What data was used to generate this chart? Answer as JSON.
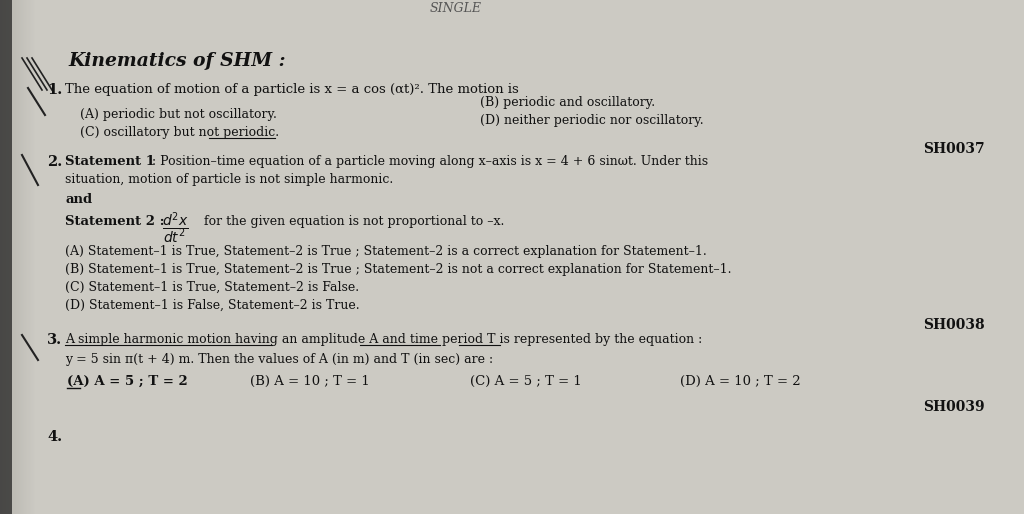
{
  "figsize": [
    10.24,
    5.14
  ],
  "dpi": 100,
  "bg_color": "#b8b8b8",
  "page_color": "#d8d5ce",
  "left_shadow": "#2a2a2a",
  "text_color": "#1a1a1a",
  "bold_color": "#111111",
  "sh_color": "#111111",
  "content": {
    "top_label": "SINGLE",
    "header": "Kinematics of SHM :",
    "q1_num": "1.",
    "q1_text": "The equation of motion of a particle is x = a cos (αt)². The motion is",
    "q1_A": "(A) periodic but not oscillatory.",
    "q1_B": "(B) periodic and oscillatory.",
    "q1_C": "(C) oscillatory but not periodic.",
    "q1_D": "(D) neither periodic nor oscillatory.",
    "sh0037": "SH0037",
    "q2_num": "2.",
    "q2_s1a": "Statement 1",
    "q2_s1b": " : Position–time equation of a particle moving along x–axis is x = 4 + 6 sinωt. Under this",
    "q2_s1c": "situation, motion of particle is not simple harmonic.",
    "q2_and": "and",
    "q2_s2a": "Statement 2 : ",
    "q2_s2b": " for the given equation is not proportional to –x.",
    "q2_A": "(A) Statement–1 is True, Statement–2 is True ; Statement–2 is a correct explanation for Statement–1.",
    "q2_B": "(B) Statement–1 is True, Statement–2 is True ; Statement–2 is not a correct explanation for Statement–1.",
    "q2_C": "(C) Statement–1 is True, Statement–2 is False.",
    "q2_D": "(D) Statement–1 is False, Statement–2 is True.",
    "sh0038": "SH0038",
    "q3_num": "3.",
    "q3_text": "A simple harmonic motion having an amplitude A and time period T is represented by the equation :",
    "q3_eq": "y = 5 sin π(t + 4) m. Then the values of A (in m) and T (in sec) are :",
    "q3_A": "(A) A = 5 ; T = 2",
    "q3_B": "(B) A = 10 ; T = 1",
    "q3_C": "(C) A = 5 ; T = 1",
    "q3_D": "(D) A = 10 ; T = 2",
    "sh0039": "SH0039",
    "q4_num": "4."
  }
}
